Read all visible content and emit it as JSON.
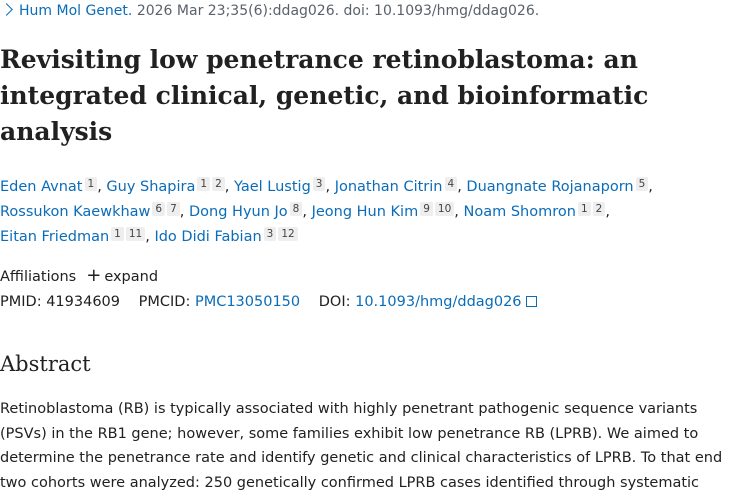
{
  "citation": {
    "journal": "Hum Mol Genet.",
    "details": "2026 Mar 23;35(6):ddag026. doi: 10.1093/hmg/ddag026."
  },
  "title": "Revisiting low penetrance retinoblastoma: an integrated clinical, genetic, and bioinformatic analysis",
  "separator": ",",
  "authors": [
    {
      "name": "Eden Avnat",
      "affiliations": [
        "1"
      ]
    },
    {
      "name": "Guy Shapira",
      "affiliations": [
        "1",
        "2"
      ]
    },
    {
      "name": "Yael Lustig",
      "affiliations": [
        "3"
      ]
    },
    {
      "name": "Jonathan Citrin",
      "affiliations": [
        "4"
      ]
    },
    {
      "name": "Duangnate Rojanaporn",
      "affiliations": [
        "5"
      ]
    },
    {
      "name": "Rossukon Kaewkhaw",
      "affiliations": [
        "6",
        "7"
      ]
    },
    {
      "name": "Dong Hyun Jo",
      "affiliations": [
        "8"
      ]
    },
    {
      "name": "Jeong Hun Kim",
      "affiliations": [
        "9",
        "10"
      ]
    },
    {
      "name": "Noam Shomron",
      "affiliations": [
        "1",
        "2"
      ]
    },
    {
      "name": "Eitan Friedman",
      "affiliations": [
        "1",
        "11"
      ]
    },
    {
      "name": "Ido Didi Fabian",
      "affiliations": [
        "3",
        "12"
      ]
    }
  ],
  "affiliations_label": "Affiliations",
  "expand": "expand",
  "identifiers": {
    "pmid_label": "PMID:",
    "pmid": "41934609",
    "pmcid_label": "PMCID:",
    "pmcid": "PMC13050150",
    "doi_label": "DOI:",
    "doi": "10.1093/hmg/ddag026"
  },
  "abstract": {
    "heading": "Abstract",
    "text": "Retinoblastoma (RB) is typically associated with highly penetrant pathogenic sequence variants (PSVs) in the RB1 gene; however, some families exhibit low penetrance RB (LPRB). We aimed to determine the penetrance rate and identify genetic and clinical characteristics of LPRB. To that end two cohorts were analyzed: 250 genetically confirmed LPRB cases identified through systematic literature review"
  }
}
